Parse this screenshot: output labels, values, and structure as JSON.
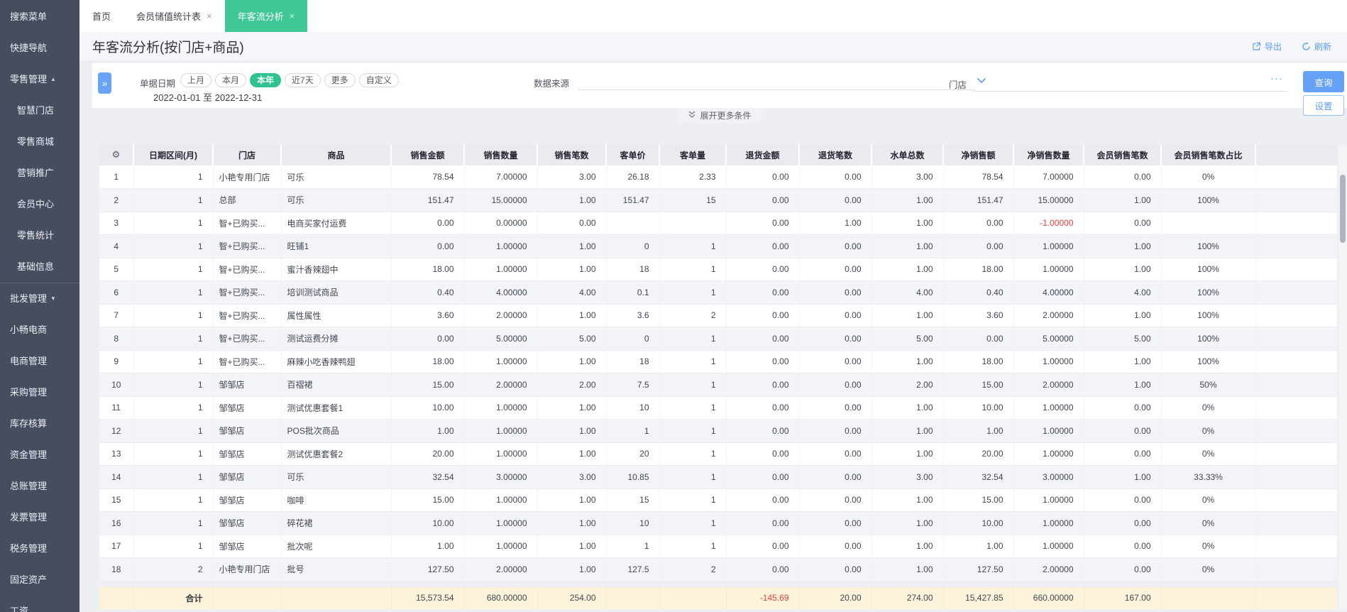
{
  "sidebar": {
    "items": [
      {
        "label": "搜索菜单",
        "type": "top"
      },
      {
        "label": "快捷导航",
        "type": "top"
      },
      {
        "label": "零售管理",
        "type": "top",
        "arrow": "up"
      },
      {
        "label": "智慧门店",
        "type": "sub"
      },
      {
        "label": "零售商城",
        "type": "sub"
      },
      {
        "label": "营销推广",
        "type": "sub"
      },
      {
        "label": "会员中心",
        "type": "sub"
      },
      {
        "label": "零售统计",
        "type": "sub"
      },
      {
        "label": "基础信息",
        "type": "sub"
      },
      {
        "type": "divider"
      },
      {
        "label": "批发管理",
        "type": "top",
        "arrow": "down"
      },
      {
        "label": "小畅电商",
        "type": "top"
      },
      {
        "label": "电商管理",
        "type": "top"
      },
      {
        "label": "采购管理",
        "type": "top"
      },
      {
        "label": "库存核算",
        "type": "top"
      },
      {
        "label": "资金管理",
        "type": "top"
      },
      {
        "label": "总账管理",
        "type": "top"
      },
      {
        "label": "发票管理",
        "type": "top"
      },
      {
        "label": "税务管理",
        "type": "top"
      },
      {
        "label": "固定资产",
        "type": "top"
      },
      {
        "label": "工资",
        "type": "top"
      }
    ]
  },
  "tabs": [
    {
      "label": "首页",
      "closable": false,
      "active": false
    },
    {
      "label": "会员储值统计表",
      "closable": true,
      "active": false
    },
    {
      "label": "年客流分析",
      "closable": true,
      "active": true
    }
  ],
  "page": {
    "title": "年客流分析(按门店+商品)",
    "export_label": "导出",
    "refresh_label": "刷新"
  },
  "filters": {
    "date_label": "单据日期",
    "pills": [
      "上月",
      "本月",
      "本年",
      "近7天",
      "更多",
      "自定义"
    ],
    "active_pill": "本年",
    "date_range": "2022-01-01 至 2022-12-31",
    "source_label": "数据来源",
    "store_label": "门店",
    "store_more": "···",
    "query_label": "查询",
    "settings_label": "设置",
    "expand_label": "展开更多条件"
  },
  "table": {
    "columns": [
      "日期区间(月)",
      "门店",
      "商品",
      "销售金额",
      "销售数量",
      "销售笔数",
      "客单价",
      "客单量",
      "退货金额",
      "退货笔数",
      "水单总数",
      "净销售额",
      "净销售数量",
      "会员销售笔数",
      "会员销售笔数占比"
    ],
    "rows": [
      [
        "1",
        "1",
        "小艳专用门店",
        "可乐",
        "78.54",
        "7.00000",
        "3.00",
        "26.18",
        "2.33",
        "0.00",
        "0.00",
        "3.00",
        "78.54",
        "7.00000",
        "0.00",
        "0%"
      ],
      [
        "2",
        "1",
        "总部",
        "可乐",
        "151.47",
        "15.00000",
        "1.00",
        "151.47",
        "15",
        "0.00",
        "0.00",
        "1.00",
        "151.47",
        "15.00000",
        "1.00",
        "100%"
      ],
      [
        "3",
        "1",
        "智+已购买...",
        "电商买家付运费",
        "0.00",
        "0.00000",
        "0.00",
        "",
        "",
        "0.00",
        "1.00",
        "1.00",
        "0.00",
        "-1.00000",
        "0.00",
        ""
      ],
      [
        "4",
        "1",
        "智+已购买...",
        "旺铺1",
        "0.00",
        "1.00000",
        "1.00",
        "0",
        "1",
        "0.00",
        "0.00",
        "1.00",
        "0.00",
        "1.00000",
        "1.00",
        "100%"
      ],
      [
        "5",
        "1",
        "智+已购买...",
        "蜜汁香辣翅中",
        "18.00",
        "1.00000",
        "1.00",
        "18",
        "1",
        "0.00",
        "0.00",
        "1.00",
        "18.00",
        "1.00000",
        "1.00",
        "100%"
      ],
      [
        "6",
        "1",
        "智+已购买...",
        "培训测试商品",
        "0.40",
        "4.00000",
        "4.00",
        "0.1",
        "1",
        "0.00",
        "0.00",
        "4.00",
        "0.40",
        "4.00000",
        "4.00",
        "100%"
      ],
      [
        "7",
        "1",
        "智+已购买...",
        "属性属性",
        "3.60",
        "2.00000",
        "1.00",
        "3.6",
        "2",
        "0.00",
        "0.00",
        "1.00",
        "3.60",
        "2.00000",
        "1.00",
        "100%"
      ],
      [
        "8",
        "1",
        "智+已购买...",
        "测试运费分摊",
        "0.00",
        "5.00000",
        "5.00",
        "0",
        "1",
        "0.00",
        "0.00",
        "5.00",
        "0.00",
        "5.00000",
        "5.00",
        "100%"
      ],
      [
        "9",
        "1",
        "智+已购买...",
        "麻辣小吃香辣鸭翅",
        "18.00",
        "1.00000",
        "1.00",
        "18",
        "1",
        "0.00",
        "0.00",
        "1.00",
        "18.00",
        "1.00000",
        "1.00",
        "100%"
      ],
      [
        "10",
        "1",
        "邹邹店",
        "百褶裙",
        "15.00",
        "2.00000",
        "2.00",
        "7.5",
        "1",
        "0.00",
        "0.00",
        "2.00",
        "15.00",
        "2.00000",
        "1.00",
        "50%"
      ],
      [
        "11",
        "1",
        "邹邹店",
        "测试优惠套餐1",
        "10.00",
        "1.00000",
        "1.00",
        "10",
        "1",
        "0.00",
        "0.00",
        "1.00",
        "10.00",
        "1.00000",
        "0.00",
        "0%"
      ],
      [
        "12",
        "1",
        "邹邹店",
        "POS批次商品",
        "1.00",
        "1.00000",
        "1.00",
        "1",
        "1",
        "0.00",
        "0.00",
        "1.00",
        "1.00",
        "1.00000",
        "0.00",
        "0%"
      ],
      [
        "13",
        "1",
        "邹邹店",
        "测试优惠套餐2",
        "20.00",
        "1.00000",
        "1.00",
        "20",
        "1",
        "0.00",
        "0.00",
        "1.00",
        "20.00",
        "1.00000",
        "0.00",
        "0%"
      ],
      [
        "14",
        "1",
        "邹邹店",
        "可乐",
        "32.54",
        "3.00000",
        "3.00",
        "10.85",
        "1",
        "0.00",
        "0.00",
        "3.00",
        "32.54",
        "3.00000",
        "1.00",
        "33.33%"
      ],
      [
        "15",
        "1",
        "邹邹店",
        "咖啡",
        "15.00",
        "1.00000",
        "1.00",
        "15",
        "1",
        "0.00",
        "0.00",
        "1.00",
        "15.00",
        "1.00000",
        "0.00",
        "0%"
      ],
      [
        "16",
        "1",
        "邹邹店",
        "碎花裙",
        "10.00",
        "1.00000",
        "1.00",
        "10",
        "1",
        "0.00",
        "0.00",
        "1.00",
        "10.00",
        "1.00000",
        "0.00",
        "0%"
      ],
      [
        "17",
        "1",
        "邹邹店",
        "批次呢",
        "1.00",
        "1.00000",
        "1.00",
        "1",
        "1",
        "0.00",
        "0.00",
        "1.00",
        "1.00",
        "1.00000",
        "0.00",
        "0%"
      ],
      [
        "18",
        "2",
        "小艳专用门店",
        "批号",
        "127.50",
        "2.00000",
        "1.00",
        "127.5",
        "2",
        "0.00",
        "0.00",
        "1.00",
        "127.50",
        "2.00000",
        "0.00",
        "0%"
      ]
    ],
    "total": [
      "",
      "合计",
      "",
      "",
      "15,573.54",
      "680.00000",
      "254.00",
      "",
      "",
      "-145.69",
      "20.00",
      "274.00",
      "15,427.85",
      "660.00000",
      "167.00",
      ""
    ]
  },
  "colors": {
    "accent_green": "#2ec290",
    "accent_blue": "#67a1f7",
    "negative_red": "#e8413c",
    "total_row_bg": "#fcf3da"
  }
}
